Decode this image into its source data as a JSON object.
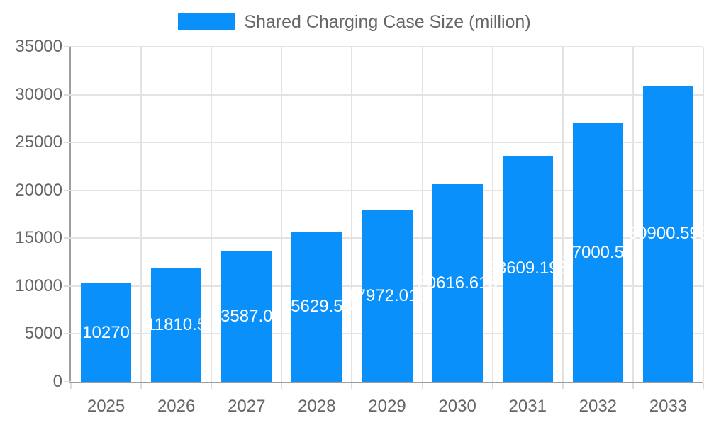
{
  "legend": {
    "label": "Shared Charging Case Size (million)"
  },
  "chart_data": {
    "type": "bar",
    "title": "Shared Charging Case Size (million)",
    "categories": [
      "2025",
      "2026",
      "2027",
      "2028",
      "2029",
      "2030",
      "2031",
      "2032",
      "2033"
    ],
    "values": [
      10270,
      11810.5,
      13587.07,
      15629.53,
      17972.018,
      20616.618,
      23609.198,
      27000.52,
      30900.598
    ],
    "xlabel": "",
    "ylabel": "",
    "ylim": [
      0,
      35000
    ],
    "ytick_step": 5000,
    "yticks": [
      "0",
      "5000",
      "10000",
      "15000",
      "20000",
      "25000",
      "30000",
      "35000"
    ],
    "grid": true,
    "legend_position": "top",
    "colors": {
      "bar": "#0a90fa",
      "grid_line": "#e3e3e3",
      "tick_mark": "#dcdcdc",
      "axis_border": "#9e9e9e",
      "axis_text": "#666666",
      "data_label": "#ffffff",
      "background": "#ffffff"
    }
  }
}
